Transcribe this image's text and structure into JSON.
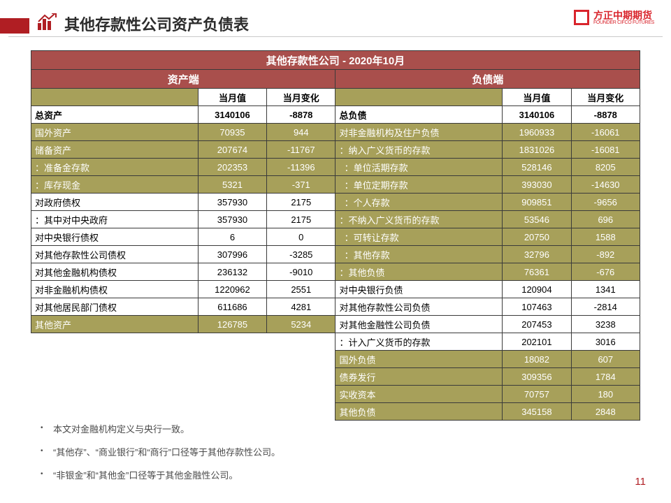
{
  "header": {
    "title": "其他存款性公司资产负债表",
    "logo_cn": "方正中期期货",
    "logo_en": "FOUNDER CIFCO FUTURES"
  },
  "table": {
    "main_title": "其他存款性公司 - 2020年10月",
    "section_asset": "资产端",
    "section_liab": "负债端",
    "col_value": "当月值",
    "col_change": "当月变化",
    "col_total_asset": "总资产",
    "col_total_liab": "总负债",
    "total_asset_val": "3140106",
    "total_asset_chg": "-8878",
    "total_liab_val": "3140106",
    "total_liab_chg": "-8878",
    "rows": [
      {
        "cls": "r-olive",
        "a": "国外资产",
        "av": "70935",
        "ac": "944",
        "l": "对非金融机构及住户负债",
        "lv": "1960933",
        "lc": "-16061"
      },
      {
        "cls": "r-olive",
        "a": "储备资产",
        "av": "207674",
        "ac": "-11767",
        "l": "：纳入广义货币的存款",
        "lv": "1831026",
        "lc": "-16081"
      },
      {
        "cls": "r-olive",
        "a": "：准备金存款",
        "av": "202353",
        "ac": "-11396",
        "l": "  ：单位活期存款",
        "lv": "528146",
        "lc": "8205"
      },
      {
        "cls": "r-olive",
        "a": "：库存现金",
        "av": "5321",
        "ac": "-371",
        "l": "  ：单位定期存款",
        "lv": "393030",
        "lc": "-14630"
      },
      {
        "cls": "r-white",
        "a": "对政府债权",
        "av": "357930",
        "ac": "2175",
        "l": "  ：个人存款",
        "lv": "909851",
        "lc": "-9656",
        "lcls": "r-olive"
      },
      {
        "cls": "r-white",
        "a": "：其中对中央政府",
        "av": "357930",
        "ac": "2175",
        "l": "：不纳入广义货币的存款",
        "lv": "53546",
        "lc": "696",
        "lcls": "r-olive"
      },
      {
        "cls": "r-white",
        "a": "对中央银行债权",
        "av": "6",
        "ac": "0",
        "l": "  ：可转让存款",
        "lv": "20750",
        "lc": "1588",
        "lcls": "r-olive"
      },
      {
        "cls": "r-white",
        "a": "对其他存款性公司债权",
        "av": "307996",
        "ac": "-3285",
        "l": "  ：其他存款",
        "lv": "32796",
        "lc": "-892",
        "lcls": "r-olive"
      },
      {
        "cls": "r-white",
        "a": "对其他金融机构债权",
        "av": "236132",
        "ac": "-9010",
        "l": "：其他负债",
        "lv": "76361",
        "lc": "-676",
        "lcls": "r-olive"
      },
      {
        "cls": "r-white",
        "a": "对非金融机构债权",
        "av": "1220962",
        "ac": "2551",
        "l": "对中央银行负债",
        "lv": "120904",
        "lc": "1341",
        "lcls": "r-white"
      },
      {
        "cls": "r-white",
        "a": "对其他居民部门债权",
        "av": "611686",
        "ac": "4281",
        "l": "对其他存款性公司负债",
        "lv": "107463",
        "lc": "-2814",
        "lcls": "r-white"
      },
      {
        "cls": "r-olive",
        "a": "其他资产",
        "av": "126785",
        "ac": "5234",
        "l": "对其他金融性公司负债",
        "lv": "207453",
        "lc": "3238",
        "lcls": "r-white"
      },
      {
        "cls": "",
        "a": "",
        "av": "",
        "ac": "",
        "l": "：计入广义货币的存款",
        "lv": "202101",
        "lc": "3016",
        "lcls": "r-white"
      },
      {
        "cls": "",
        "a": "",
        "av": "",
        "ac": "",
        "l": "国外负债",
        "lv": "18082",
        "lc": "607",
        "lcls": "r-olive"
      },
      {
        "cls": "",
        "a": "",
        "av": "",
        "ac": "",
        "l": "债券发行",
        "lv": "309356",
        "lc": "1784",
        "lcls": "r-olive"
      },
      {
        "cls": "",
        "a": "",
        "av": "",
        "ac": "",
        "l": "实收资本",
        "lv": "70757",
        "lc": "180",
        "lcls": "r-olive"
      },
      {
        "cls": "",
        "a": "",
        "av": "",
        "ac": "",
        "l": "其他负债",
        "lv": "345158",
        "lc": "2848",
        "lcls": "r-olive"
      }
    ]
  },
  "bullets": [
    "本文对金融机构定义与央行一致。",
    "“其他存”、“商业银行”和“商行”口径等于其他存款性公司。",
    "“非银金”和“其他金”口径等于其他金融性公司。"
  ],
  "page_number": "11"
}
